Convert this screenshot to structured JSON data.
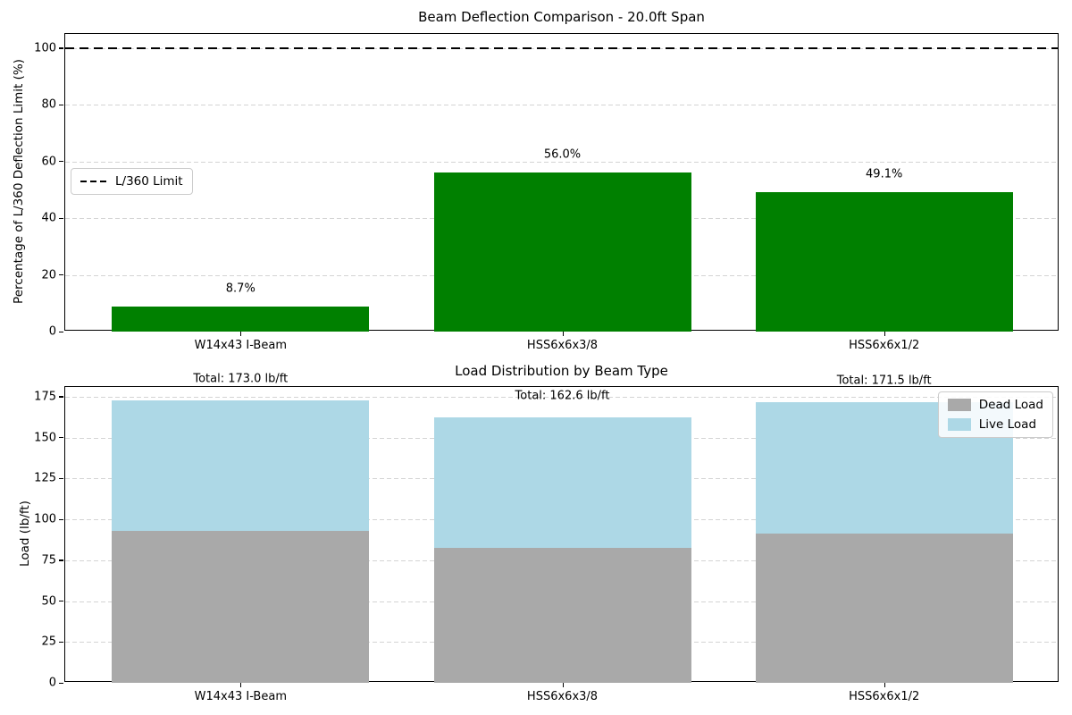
{
  "figure": {
    "background": "#ffffff"
  },
  "chart_data": [
    {
      "type": "bar",
      "title": "Beam Deflection Comparison - 20.0ft Span",
      "ylabel": "Percentage of L/360 Deflection Limit (%)",
      "xlabel": "",
      "categories": [
        "W14x43 I-Beam",
        "HSS6x6x3/8",
        "HSS6x6x1/2"
      ],
      "values": [
        8.7,
        56.0,
        49.1
      ],
      "value_labels": [
        "8.7%",
        "56.0%",
        "49.1%"
      ],
      "bar_color": "#008000",
      "ylim": [
        0,
        105
      ],
      "yticks": [
        0,
        20,
        40,
        60,
        80,
        100
      ],
      "grid": {
        "axis": "y",
        "style": "dashed",
        "color": "#d4d4d4"
      },
      "reference_line": {
        "value": 100,
        "style": "dashed",
        "color": "#000000"
      },
      "legend": {
        "position": "center-left",
        "entries": [
          {
            "label": "L/360 Limit",
            "swatch": "dashed-line",
            "color": "#000000"
          }
        ]
      }
    },
    {
      "type": "stacked-bar",
      "title": "Load Distribution by Beam Type",
      "ylabel": "Load (lb/ft)",
      "xlabel": "",
      "categories": [
        "W14x43 I-Beam",
        "HSS6x6x3/8",
        "HSS6x6x1/2"
      ],
      "series": [
        {
          "name": "Dead Load",
          "color": "#a9a9a9",
          "values": [
            93.0,
            82.6,
            91.5
          ]
        },
        {
          "name": "Live Load",
          "color": "#add8e6",
          "values": [
            80.0,
            80.0,
            80.0
          ]
        }
      ],
      "totals": [
        173.0,
        162.6,
        171.5
      ],
      "total_labels": [
        "Total: 173.0 lb/ft",
        "Total: 162.6 lb/ft",
        "Total: 171.5 lb/ft"
      ],
      "ylim": [
        0,
        181
      ],
      "yticks": [
        0,
        25,
        50,
        75,
        100,
        125,
        150,
        175
      ],
      "grid": {
        "axis": "y",
        "style": "dashed",
        "color": "#d4d4d4"
      },
      "legend": {
        "position": "top-right",
        "entries": [
          {
            "label": "Dead Load",
            "swatch": "patch",
            "color": "#a9a9a9"
          },
          {
            "label": "Live Load",
            "swatch": "patch",
            "color": "#add8e6"
          }
        ]
      }
    }
  ]
}
